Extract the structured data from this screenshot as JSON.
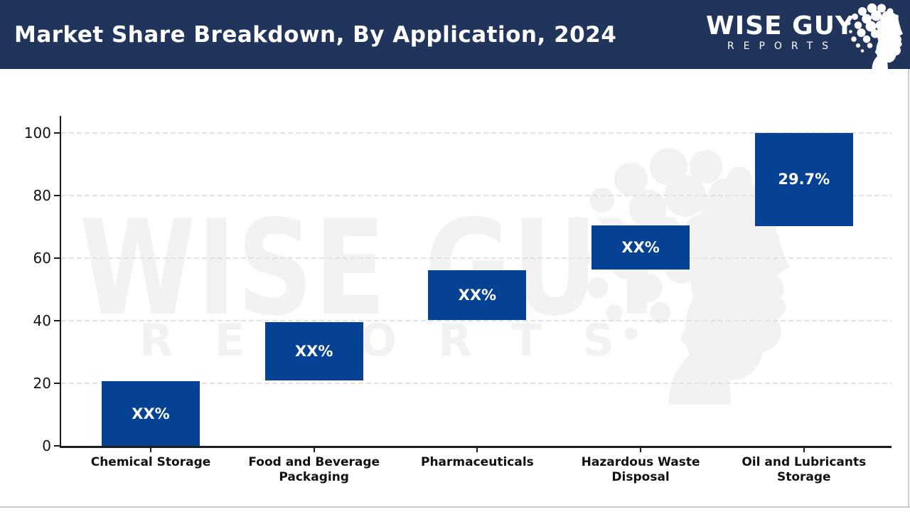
{
  "header": {
    "title": "Market Share Breakdown, By Application, 2024",
    "logo": {
      "name": "WISE GUY",
      "sub": "REPORTS"
    }
  },
  "watermark": {
    "big_text": "WISE GUY",
    "sub_text": "REPORTS"
  },
  "chart_data": {
    "type": "bar",
    "subtype": "floating-segment-waterfall",
    "title": "Market Share Breakdown, By Application, 2024",
    "categories": [
      "Chemical Storage",
      "Food and Beverage\nPackaging",
      "Pharmaceuticals",
      "Hazardous Waste\nDisposal",
      "Oil and Lubricants\nStorage"
    ],
    "segments": [
      {
        "category": "Chemical Storage",
        "start": 0,
        "end": 20.6,
        "label": "XX%"
      },
      {
        "category": "Food and Beverage Packaging",
        "start": 20.9,
        "end": 39.6,
        "label": "XX%"
      },
      {
        "category": "Pharmaceuticals",
        "start": 40.2,
        "end": 56.1,
        "label": "XX%"
      },
      {
        "category": "Hazardous Waste Disposal",
        "start": 56.4,
        "end": 70.5,
        "label": "XX%"
      },
      {
        "category": "Oil and Lubricants Storage",
        "start": 70.3,
        "end": 100,
        "label": "29.7%"
      }
    ],
    "bar_labels": [
      "XX%",
      "XX%",
      "XX%",
      "XX%",
      "29.7%"
    ],
    "ylabel": "",
    "xlabel": "",
    "ylim": [
      0,
      100
    ],
    "yticks": [
      0,
      20,
      40,
      60,
      80,
      100
    ],
    "grid": "horizontal-dashed",
    "legend": "none",
    "colors": {
      "bar": "#064294",
      "bar_label": "#ffffff",
      "header_bg": "#21355C",
      "axis": "#1c1c1c",
      "tick_text": "#111111",
      "gridline": "#e2e2e2",
      "watermark": "#f2f2f2"
    }
  }
}
